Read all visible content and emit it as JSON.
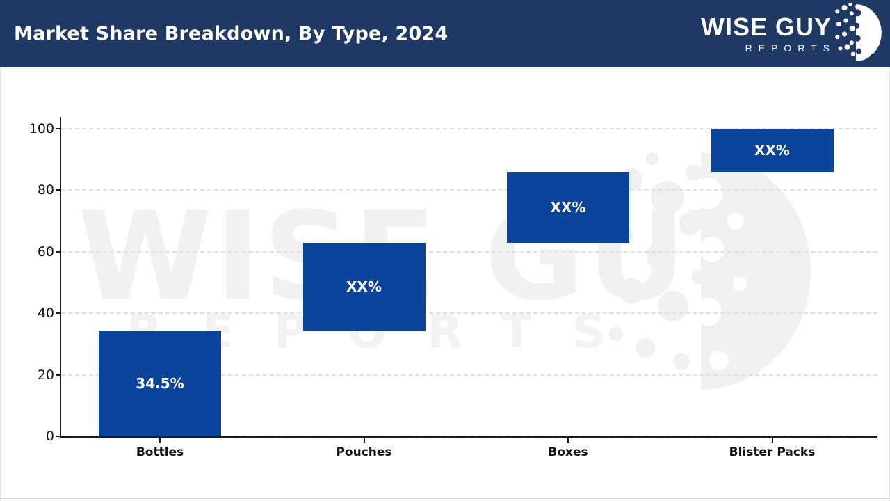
{
  "header": {
    "title": "Market Share Breakdown, By Type, 2024",
    "logo": {
      "line1": "WISE GUY",
      "line2": "REPORTS"
    }
  },
  "watermark": {
    "line1": "WISE GUY",
    "line2": "REPORTS"
  },
  "chart_data": {
    "type": "bar",
    "subtype": "floating-waterfall",
    "title": "Market Share Breakdown, By Type, 2024",
    "categories": [
      "Bottles",
      "Pouches",
      "Boxes",
      "Blister Packs"
    ],
    "segments": [
      {
        "category": "Bottles",
        "start": 0,
        "end": 34.5,
        "label": "34.5%"
      },
      {
        "category": "Pouches",
        "start": 34.5,
        "end": 63,
        "label": "XX%"
      },
      {
        "category": "Boxes",
        "start": 63,
        "end": 86,
        "label": "XX%"
      },
      {
        "category": "Blister Packs",
        "start": 86,
        "end": 100,
        "label": "XX%"
      }
    ],
    "segment_sizes_pct": [
      34.5,
      28.5,
      23,
      14
    ],
    "yticks": [
      0,
      20,
      40,
      60,
      80,
      100
    ],
    "ylim": [
      0,
      105
    ],
    "xlabel": "",
    "ylabel": "",
    "grid": "horizontal dashed",
    "legend_position": "none",
    "bar_color": "#0c449b",
    "bar_label_color": "#ffffff"
  },
  "colors": {
    "header_bg": "#1f3864",
    "axis": "#1a1a1a",
    "gridline": "#e0e0e0",
    "watermark": "#f1f1f4",
    "frame_line": "#d9d9d9"
  }
}
